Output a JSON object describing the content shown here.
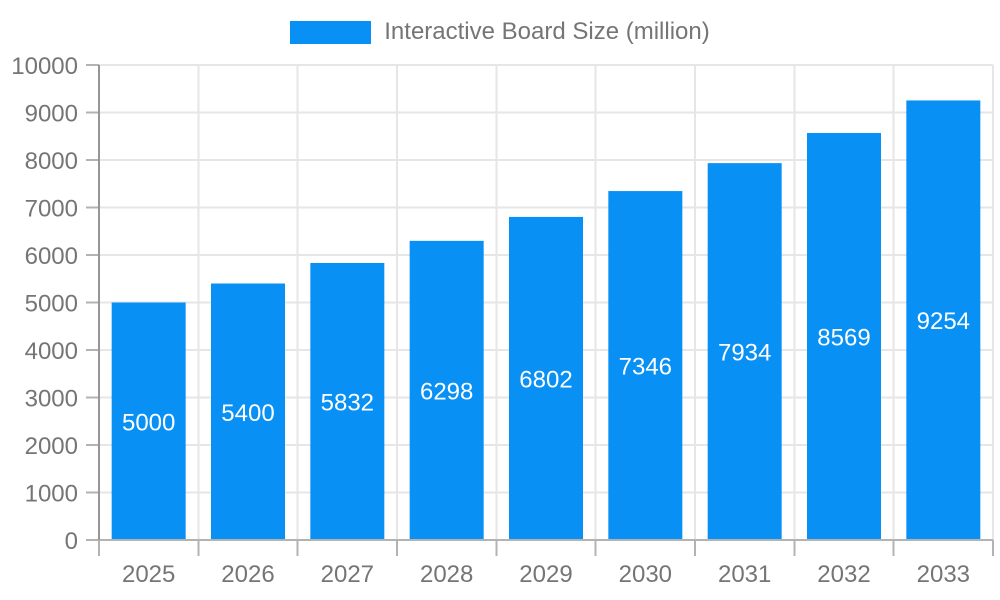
{
  "legend": {
    "label": "Interactive Board Size (million)"
  },
  "chart_data": {
    "type": "bar",
    "title": "",
    "legend_label": "Interactive Board Size (million)",
    "categories": [
      "2025",
      "2026",
      "2027",
      "2028",
      "2029",
      "2030",
      "2031",
      "2032",
      "2033"
    ],
    "values": [
      5000,
      5400,
      5832,
      6298,
      6802,
      7346,
      7934,
      8569,
      9254
    ],
    "xlabel": "",
    "ylabel": "",
    "ylim": [
      0,
      10000
    ],
    "ytick_step": 1000,
    "ytick_labels": [
      "0",
      "1000",
      "2000",
      "3000",
      "4000",
      "5000",
      "6000",
      "7000",
      "8000",
      "9000",
      "10000"
    ],
    "grid": true,
    "legend_position": "top-center",
    "bar_label_position": "inside-center",
    "colors": {
      "bar": "#0890f4",
      "bar_label": "#ffffff",
      "axis_text": "#757575",
      "gridline": "#e6e6e6",
      "y_axis_line": "#969696",
      "x_axis_line": "#b3b3b3",
      "tick": "#b3b3b3",
      "background": "#ffffff"
    }
  }
}
